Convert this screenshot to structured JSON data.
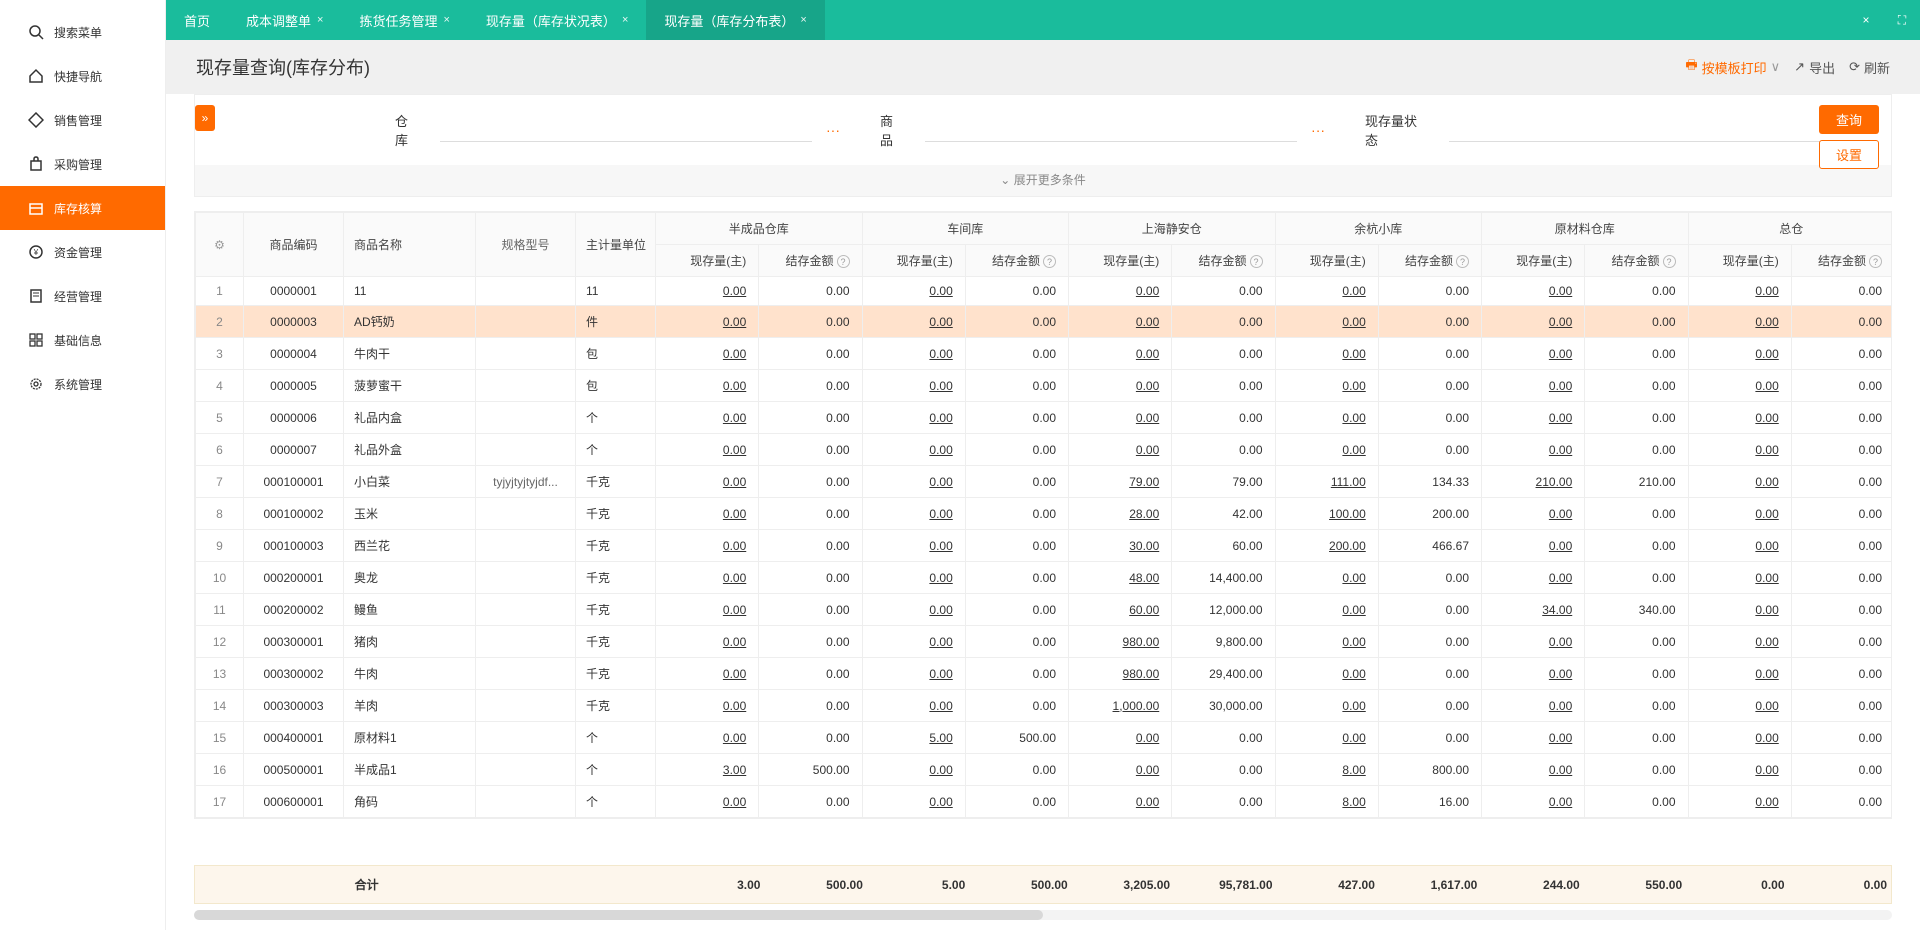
{
  "nav": {
    "items": [
      {
        "label": "搜索菜单",
        "icon": "search"
      },
      {
        "label": "快捷导航",
        "icon": "home"
      },
      {
        "label": "销售管理",
        "icon": "diamond"
      },
      {
        "label": "采购管理",
        "icon": "bag"
      },
      {
        "label": "库存核算",
        "icon": "box",
        "active": true
      },
      {
        "label": "资金管理",
        "icon": "coin"
      },
      {
        "label": "经营管理",
        "icon": "doc"
      },
      {
        "label": "基础信息",
        "icon": "grid"
      },
      {
        "label": "系统管理",
        "icon": "gear"
      }
    ]
  },
  "tabs": {
    "items": [
      {
        "label": "首页",
        "closable": false
      },
      {
        "label": "成本调整单",
        "closable": true
      },
      {
        "label": "拣货任务管理",
        "closable": true
      },
      {
        "label": "现存量（库存状况表）",
        "closable": true
      },
      {
        "label": "现存量（库存分布表）",
        "closable": true,
        "active": true
      }
    ]
  },
  "title": "现存量查询(库存分布)",
  "titleActions": {
    "print": "按模板打印",
    "export": "导出",
    "refresh": "刷新"
  },
  "filters": {
    "warehouse": "仓库",
    "product": "商品",
    "status": "现存量状态",
    "more": "···",
    "expand": "展开更多条件",
    "query": "查询",
    "settings": "设置"
  },
  "table": {
    "gear": "⚙",
    "cols": {
      "code": "商品编码",
      "name": "商品名称",
      "spec": "规格型号",
      "unit": "主计量单位",
      "qty": "现存量(主)",
      "amt": "结存金额"
    },
    "groups": [
      "半成品仓库",
      "车间库",
      "上海静安仓",
      "余杭小库",
      "原材料仓库",
      "总仓"
    ],
    "rows": [
      {
        "i": 1,
        "code": "0000001",
        "name": "11",
        "spec": "",
        "unit": "11",
        "v": [
          [
            "0.00",
            "0.00"
          ],
          [
            "0.00",
            "0.00"
          ],
          [
            "0.00",
            "0.00"
          ],
          [
            "0.00",
            "0.00"
          ],
          [
            "0.00",
            "0.00"
          ],
          [
            "0.00",
            "0.00"
          ]
        ]
      },
      {
        "i": 2,
        "code": "0000003",
        "name": "AD钙奶",
        "spec": "",
        "unit": "件",
        "hl": true,
        "v": [
          [
            "0.00",
            "0.00"
          ],
          [
            "0.00",
            "0.00"
          ],
          [
            "0.00",
            "0.00"
          ],
          [
            "0.00",
            "0.00"
          ],
          [
            "0.00",
            "0.00"
          ],
          [
            "0.00",
            "0.00"
          ]
        ]
      },
      {
        "i": 3,
        "code": "0000004",
        "name": "牛肉干",
        "spec": "",
        "unit": "包",
        "v": [
          [
            "0.00",
            "0.00"
          ],
          [
            "0.00",
            "0.00"
          ],
          [
            "0.00",
            "0.00"
          ],
          [
            "0.00",
            "0.00"
          ],
          [
            "0.00",
            "0.00"
          ],
          [
            "0.00",
            "0.00"
          ]
        ]
      },
      {
        "i": 4,
        "code": "0000005",
        "name": "菠萝蜜干",
        "spec": "",
        "unit": "包",
        "v": [
          [
            "0.00",
            "0.00"
          ],
          [
            "0.00",
            "0.00"
          ],
          [
            "0.00",
            "0.00"
          ],
          [
            "0.00",
            "0.00"
          ],
          [
            "0.00",
            "0.00"
          ],
          [
            "0.00",
            "0.00"
          ]
        ]
      },
      {
        "i": 5,
        "code": "0000006",
        "name": "礼品内盒",
        "spec": "",
        "unit": "个",
        "v": [
          [
            "0.00",
            "0.00"
          ],
          [
            "0.00",
            "0.00"
          ],
          [
            "0.00",
            "0.00"
          ],
          [
            "0.00",
            "0.00"
          ],
          [
            "0.00",
            "0.00"
          ],
          [
            "0.00",
            "0.00"
          ]
        ]
      },
      {
        "i": 6,
        "code": "0000007",
        "name": "礼品外盒",
        "spec": "",
        "unit": "个",
        "v": [
          [
            "0.00",
            "0.00"
          ],
          [
            "0.00",
            "0.00"
          ],
          [
            "0.00",
            "0.00"
          ],
          [
            "0.00",
            "0.00"
          ],
          [
            "0.00",
            "0.00"
          ],
          [
            "0.00",
            "0.00"
          ]
        ]
      },
      {
        "i": 7,
        "code": "000100001",
        "name": "小白菜",
        "spec": "tyjyjtyjtyjdf...",
        "unit": "千克",
        "v": [
          [
            "0.00",
            "0.00"
          ],
          [
            "0.00",
            "0.00"
          ],
          [
            "79.00",
            "79.00"
          ],
          [
            "111.00",
            "134.33"
          ],
          [
            "210.00",
            "210.00"
          ],
          [
            "0.00",
            "0.00"
          ]
        ]
      },
      {
        "i": 8,
        "code": "000100002",
        "name": "玉米",
        "spec": "",
        "unit": "千克",
        "v": [
          [
            "0.00",
            "0.00"
          ],
          [
            "0.00",
            "0.00"
          ],
          [
            "28.00",
            "42.00"
          ],
          [
            "100.00",
            "200.00"
          ],
          [
            "0.00",
            "0.00"
          ],
          [
            "0.00",
            "0.00"
          ]
        ]
      },
      {
        "i": 9,
        "code": "000100003",
        "name": "西兰花",
        "spec": "",
        "unit": "千克",
        "v": [
          [
            "0.00",
            "0.00"
          ],
          [
            "0.00",
            "0.00"
          ],
          [
            "30.00",
            "60.00"
          ],
          [
            "200.00",
            "466.67"
          ],
          [
            "0.00",
            "0.00"
          ],
          [
            "0.00",
            "0.00"
          ]
        ]
      },
      {
        "i": 10,
        "code": "000200001",
        "name": "奥龙",
        "spec": "",
        "unit": "千克",
        "v": [
          [
            "0.00",
            "0.00"
          ],
          [
            "0.00",
            "0.00"
          ],
          [
            "48.00",
            "14,400.00"
          ],
          [
            "0.00",
            "0.00"
          ],
          [
            "0.00",
            "0.00"
          ],
          [
            "0.00",
            "0.00"
          ]
        ]
      },
      {
        "i": 11,
        "code": "000200002",
        "name": "鳗鱼",
        "spec": "",
        "unit": "千克",
        "v": [
          [
            "0.00",
            "0.00"
          ],
          [
            "0.00",
            "0.00"
          ],
          [
            "60.00",
            "12,000.00"
          ],
          [
            "0.00",
            "0.00"
          ],
          [
            "34.00",
            "340.00"
          ],
          [
            "0.00",
            "0.00"
          ]
        ]
      },
      {
        "i": 12,
        "code": "000300001",
        "name": "猪肉",
        "spec": "",
        "unit": "千克",
        "v": [
          [
            "0.00",
            "0.00"
          ],
          [
            "0.00",
            "0.00"
          ],
          [
            "980.00",
            "9,800.00"
          ],
          [
            "0.00",
            "0.00"
          ],
          [
            "0.00",
            "0.00"
          ],
          [
            "0.00",
            "0.00"
          ]
        ]
      },
      {
        "i": 13,
        "code": "000300002",
        "name": "牛肉",
        "spec": "",
        "unit": "千克",
        "v": [
          [
            "0.00",
            "0.00"
          ],
          [
            "0.00",
            "0.00"
          ],
          [
            "980.00",
            "29,400.00"
          ],
          [
            "0.00",
            "0.00"
          ],
          [
            "0.00",
            "0.00"
          ],
          [
            "0.00",
            "0.00"
          ]
        ]
      },
      {
        "i": 14,
        "code": "000300003",
        "name": "羊肉",
        "spec": "",
        "unit": "千克",
        "v": [
          [
            "0.00",
            "0.00"
          ],
          [
            "0.00",
            "0.00"
          ],
          [
            "1,000.00",
            "30,000.00"
          ],
          [
            "0.00",
            "0.00"
          ],
          [
            "0.00",
            "0.00"
          ],
          [
            "0.00",
            "0.00"
          ]
        ]
      },
      {
        "i": 15,
        "code": "000400001",
        "name": "原材料1",
        "spec": "",
        "unit": "个",
        "v": [
          [
            "0.00",
            "0.00"
          ],
          [
            "5.00",
            "500.00"
          ],
          [
            "0.00",
            "0.00"
          ],
          [
            "0.00",
            "0.00"
          ],
          [
            "0.00",
            "0.00"
          ],
          [
            "0.00",
            "0.00"
          ]
        ]
      },
      {
        "i": 16,
        "code": "000500001",
        "name": "半成品1",
        "spec": "",
        "unit": "个",
        "v": [
          [
            "3.00",
            "500.00"
          ],
          [
            "0.00",
            "0.00"
          ],
          [
            "0.00",
            "0.00"
          ],
          [
            "8.00",
            "800.00"
          ],
          [
            "0.00",
            "0.00"
          ],
          [
            "0.00",
            "0.00"
          ]
        ]
      },
      {
        "i": 17,
        "code": "000600001",
        "name": "角码",
        "spec": "",
        "unit": "个",
        "v": [
          [
            "0.00",
            "0.00"
          ],
          [
            "0.00",
            "0.00"
          ],
          [
            "0.00",
            "0.00"
          ],
          [
            "8.00",
            "16.00"
          ],
          [
            "0.00",
            "0.00"
          ],
          [
            "0.00",
            "0.00"
          ]
        ]
      }
    ],
    "total": {
      "label": "合计",
      "v": [
        [
          "3.00",
          "500.00"
        ],
        [
          "5.00",
          "500.00"
        ],
        [
          "3,205.00",
          "95,781.00"
        ],
        [
          "427.00",
          "1,617.00"
        ],
        [
          "244.00",
          "550.00"
        ],
        [
          "0.00",
          "0.00"
        ]
      ]
    }
  }
}
